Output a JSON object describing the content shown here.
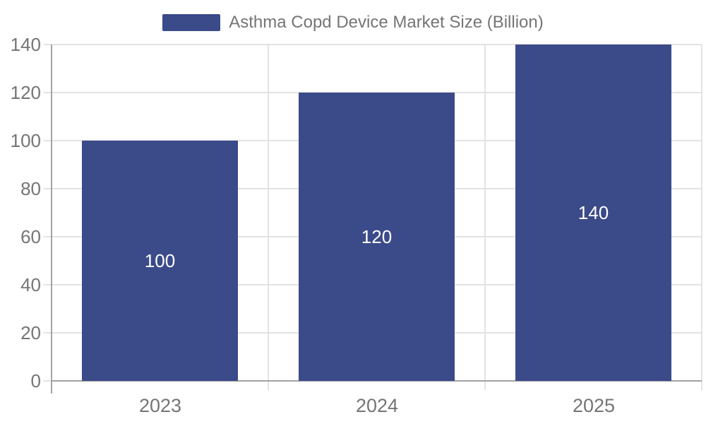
{
  "chart_data": {
    "type": "bar",
    "title": "",
    "legend": {
      "label": "Asthma Copd Device Market Size (Billion)",
      "position": "top-center"
    },
    "categories": [
      "2023",
      "2024",
      "2025"
    ],
    "series": [
      {
        "name": "Asthma Copd Device Market Size (Billion)",
        "values": [
          100,
          120,
          140
        ]
      }
    ],
    "value_labels": [
      "100",
      "120",
      "140"
    ],
    "xlabel": "",
    "ylabel": "",
    "ylim": [
      0,
      140
    ],
    "yticks": [
      0,
      20,
      40,
      60,
      80,
      100,
      120,
      140
    ],
    "grid": true,
    "colors": {
      "bar": "#3B4A89",
      "grid": "#E3E3E3",
      "axis": "#A3A3A3",
      "text": "#757575",
      "value_label": "#FFFFFF",
      "background": "#FFFFFF"
    }
  }
}
